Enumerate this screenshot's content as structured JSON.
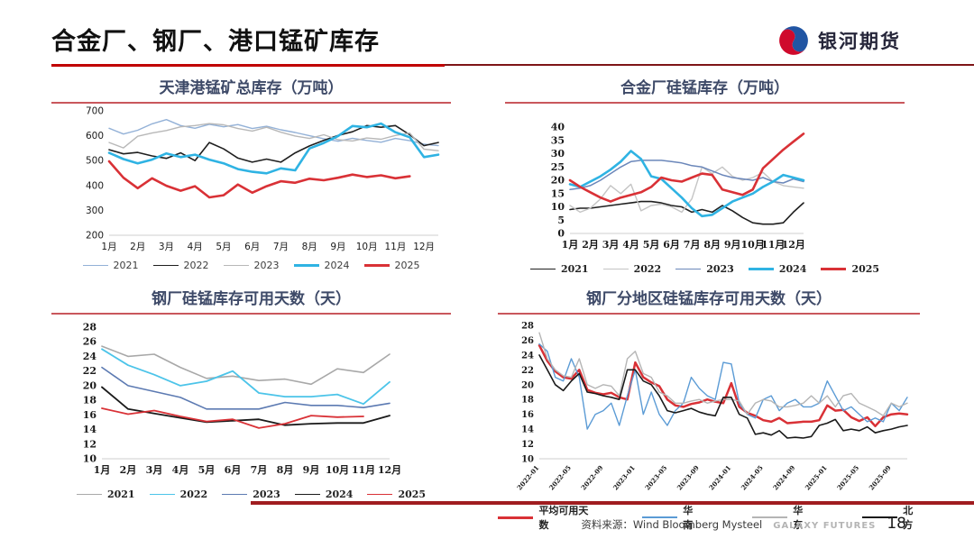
{
  "header": {
    "title": "合金厂、钢厂、港口锰矿库存",
    "logo_text": "银河期货",
    "logo_colors": {
      "blue": "#2155a3",
      "red": "#cf0a2c"
    }
  },
  "footer": {
    "source": "资料来源：Wind Bloomberg Mysteel",
    "brand": "GALAXY FUTURES",
    "page": "18"
  },
  "chart_data": [
    {
      "type": "line",
      "title": "天津港锰矿总库存（万吨）",
      "ylim": [
        200,
        700
      ],
      "y_step": 100,
      "yticks": [
        200,
        300,
        400,
        500,
        600,
        700
      ],
      "x_labels": [
        "1月",
        "2月",
        "3月",
        "4月",
        "5月",
        "6月",
        "7月",
        "8月",
        "9月",
        "10月",
        "11月",
        "12月"
      ],
      "legend_position": "bottom",
      "grid": false,
      "series": [
        {
          "name": "2021",
          "color": "#93b1d7",
          "width": 1.4,
          "values": [
            630,
            607,
            622,
            648,
            665,
            641,
            630,
            646,
            636,
            645,
            629,
            638,
            624,
            613,
            600,
            588,
            578,
            590,
            581,
            574,
            589,
            580,
            566,
            560
          ]
        },
        {
          "name": "2022",
          "color": "#1f1f1f",
          "width": 1.6,
          "values": [
            544,
            527,
            533,
            519,
            509,
            531,
            500,
            573,
            547,
            510,
            494,
            506,
            494,
            531,
            559,
            581,
            601,
            616,
            641,
            634,
            641,
            604,
            560,
            573
          ]
        },
        {
          "name": "2023",
          "color": "#b8b8b8",
          "width": 1.4,
          "values": [
            573,
            551,
            598,
            611,
            621,
            636,
            641,
            649,
            644,
            629,
            619,
            634,
            614,
            599,
            589,
            604,
            584,
            579,
            591,
            586,
            601,
            611,
            546,
            540
          ]
        },
        {
          "name": "2024",
          "color": "#2fb3e3",
          "width": 2.6,
          "values": [
            531,
            506,
            489,
            504,
            529,
            514,
            524,
            504,
            489,
            466,
            455,
            449,
            469,
            461,
            549,
            571,
            599,
            639,
            634,
            649,
            614,
            594,
            514,
            524
          ]
        },
        {
          "name": "2025",
          "color": "#d93136",
          "width": 2.6,
          "values": [
            497,
            431,
            389,
            429,
            399,
            379,
            397,
            352,
            361,
            404,
            371,
            397,
            417,
            411,
            427,
            421,
            431,
            444,
            434,
            441,
            429,
            437
          ]
        }
      ]
    },
    {
      "type": "line",
      "title": "合金厂硅锰库存（万吨）",
      "ylim": [
        0,
        40
      ],
      "y_step": 5,
      "yticks": [
        0,
        5,
        10,
        15,
        20,
        25,
        30,
        35,
        40
      ],
      "x_labels": [
        "1月",
        "2月",
        "3月",
        "4月",
        "5月",
        "6月",
        "7月",
        "8月",
        "9月",
        "10月",
        "11月",
        "12月"
      ],
      "legend_position": "bottom",
      "grid": false,
      "series": [
        {
          "name": "2021",
          "color": "#1f1f1f",
          "width": 1.6,
          "values": [
            9,
            9.5,
            9.5,
            10,
            10.5,
            11,
            11.5,
            12,
            12,
            11.5,
            10.5,
            10,
            8,
            9,
            8,
            10.5,
            8.5,
            6,
            4,
            3.5,
            3.5,
            4,
            8,
            11.5
          ]
        },
        {
          "name": "2022",
          "color": "#c4c4c4",
          "width": 1.4,
          "values": [
            10.5,
            8,
            9.5,
            13,
            18,
            15,
            18.5,
            8.5,
            10.5,
            11,
            10,
            8,
            13,
            25,
            22.5,
            25,
            21.5,
            20,
            21,
            23,
            19.5,
            18,
            17.5,
            17
          ]
        },
        {
          "name": "2023",
          "color": "#6b87ba",
          "width": 1.5,
          "values": [
            16.5,
            17,
            18,
            20,
            22.5,
            25,
            27,
            27.5,
            27.5,
            27.5,
            27,
            26.5,
            25.5,
            25,
            23.5,
            22,
            21,
            20.5,
            20,
            21,
            19.5,
            19,
            20.5,
            19.5
          ]
        },
        {
          "name": "2024",
          "color": "#2fb3e3",
          "width": 2.6,
          "values": [
            18.5,
            17.5,
            19.5,
            21.5,
            24,
            27,
            31,
            28,
            21.5,
            20.5,
            17,
            13.5,
            9.5,
            6.5,
            7,
            9.5,
            12,
            13.5,
            15,
            17.5,
            19.5,
            22,
            21,
            20
          ]
        },
        {
          "name": "2025",
          "color": "#d93136",
          "width": 2.6,
          "values": [
            20,
            17.5,
            15.5,
            13.5,
            12,
            13.5,
            14.5,
            15.5,
            17.5,
            21,
            20,
            19.5,
            21,
            22.5,
            22,
            16.5,
            15.5,
            14.5,
            16.5,
            24.5,
            28,
            31.5,
            34.5,
            37.5
          ]
        }
      ]
    },
    {
      "type": "line",
      "title": "钢厂硅锰库存可用天数（天）",
      "ylim": [
        10,
        28
      ],
      "y_step": 2,
      "yticks": [
        10,
        12,
        14,
        16,
        18,
        20,
        22,
        24,
        26,
        28
      ],
      "x_labels": [
        "1月",
        "2月",
        "3月",
        "4月",
        "5月",
        "6月",
        "7月",
        "8月",
        "9月",
        "10月",
        "11月",
        "12月"
      ],
      "legend_position": "bottom",
      "grid": false,
      "series": [
        {
          "name": "2021",
          "color": "#a8a8a8",
          "width": 1.6,
          "values": [
            25.4,
            24.0,
            24.3,
            22.5,
            21.0,
            21.3,
            20.7,
            20.9,
            20.2,
            22.3,
            21.8,
            24.3
          ]
        },
        {
          "name": "2022",
          "color": "#4cc4e9",
          "width": 1.8,
          "values": [
            25.0,
            22.8,
            21.5,
            20.0,
            20.6,
            22.0,
            19.0,
            18.5,
            18.5,
            18.8,
            17.5,
            20.5
          ]
        },
        {
          "name": "2023",
          "color": "#5c7ab2",
          "width": 1.6,
          "values": [
            22.5,
            20.0,
            19.2,
            18.4,
            16.8,
            16.8,
            16.8,
            17.7,
            17.3,
            17.3,
            17.0,
            17.6
          ]
        },
        {
          "name": "2024",
          "color": "#1a1a1a",
          "width": 1.8,
          "values": [
            19.8,
            16.8,
            16.2,
            15.6,
            15.0,
            15.2,
            15.4,
            14.6,
            14.8,
            14.9,
            14.9,
            15.9
          ]
        },
        {
          "name": "2025",
          "color": "#d93136",
          "width": 1.8,
          "values": [
            16.9,
            16.1,
            16.6,
            15.8,
            15.1,
            15.4,
            14.2,
            14.8,
            15.9,
            15.7,
            15.8
          ]
        }
      ]
    },
    {
      "type": "line",
      "title": "钢厂分地区硅锰库存可用天数（天）",
      "ylim": [
        10,
        28
      ],
      "y_step": 2,
      "yticks": [
        10,
        12,
        14,
        16,
        18,
        20,
        22,
        24,
        26,
        28
      ],
      "x_labels": [
        "2022-01",
        "2022-05",
        "2022-09",
        "2023-01",
        "2023-05",
        "2023-09",
        "2024-01",
        "2024-05",
        "2024-09",
        "2025-01",
        "2025-05",
        "2025-09"
      ],
      "x_label_indices": [
        0,
        4,
        8,
        12,
        16,
        20,
        24,
        28,
        32,
        36,
        40,
        44
      ],
      "legend_position": "bottom",
      "grid": false,
      "series": [
        {
          "name": "平均可用天数",
          "color": "#d93136",
          "width": 2.5,
          "values": [
            25.3,
            23.2,
            21.8,
            21.0,
            20.8,
            22.0,
            19.3,
            18.9,
            18.7,
            18.9,
            18.3,
            18.0,
            23.0,
            21.0,
            20.3,
            19.8,
            18.0,
            17.2,
            17.0,
            17.4,
            17.6,
            18.0,
            17.7,
            17.5,
            20.2,
            17.0,
            16.2,
            15.8,
            15.2,
            15.0,
            15.5,
            14.8,
            14.9,
            15.0,
            15.0,
            15.2,
            17.2,
            16.5,
            16.6,
            15.6,
            15.1,
            15.6,
            14.4,
            15.6,
            16.0,
            16.1,
            16.0
          ]
        },
        {
          "name": "华南",
          "color": "#5b9bd5",
          "width": 1.4,
          "values": [
            25.5,
            24.5,
            21.0,
            20.5,
            23.5,
            21.0,
            14.0,
            16.0,
            16.5,
            17.5,
            14.5,
            18.5,
            22.0,
            16.0,
            19.0,
            16.0,
            14.5,
            16.5,
            17.5,
            21.0,
            19.5,
            18.5,
            18.0,
            23.0,
            22.8,
            17.5,
            16.0,
            15.5,
            18.0,
            18.5,
            16.5,
            17.5,
            18.0,
            17.0,
            17.0,
            17.5,
            20.5,
            18.5,
            16.5,
            17.0,
            16.0,
            15.0,
            15.5,
            15.0,
            17.5,
            16.5,
            18.3
          ]
        },
        {
          "name": "华东",
          "color": "#b5b5b5",
          "width": 1.4,
          "values": [
            27.0,
            23.5,
            22.0,
            21.2,
            21.0,
            23.5,
            20.0,
            19.5,
            20.0,
            19.8,
            18.5,
            23.5,
            24.5,
            21.5,
            21.0,
            19.0,
            18.5,
            17.5,
            17.5,
            17.8,
            18.0,
            17.5,
            17.8,
            18.0,
            18.0,
            17.8,
            16.0,
            17.5,
            18.0,
            17.8,
            17.0,
            17.0,
            17.2,
            17.5,
            18.5,
            17.5,
            18.5,
            17.0,
            18.5,
            18.8,
            17.5,
            17.0,
            16.5,
            15.8,
            17.5,
            17.0,
            17.5
          ]
        },
        {
          "name": "北方",
          "color": "#1a1a1a",
          "width": 1.6,
          "values": [
            24.0,
            22.0,
            20.0,
            19.2,
            20.5,
            21.5,
            19.0,
            18.8,
            18.5,
            18.3,
            18.0,
            22.0,
            22.0,
            20.5,
            20.0,
            18.5,
            16.5,
            16.2,
            16.5,
            16.8,
            16.3,
            16.0,
            15.8,
            18.3,
            18.3,
            16.0,
            15.5,
            13.3,
            13.5,
            13.2,
            13.8,
            12.8,
            12.9,
            12.8,
            13.0,
            14.5,
            14.8,
            15.3,
            13.8,
            14.0,
            13.8,
            14.3,
            13.5,
            13.8,
            14.0,
            14.3,
            14.5
          ]
        }
      ]
    }
  ]
}
